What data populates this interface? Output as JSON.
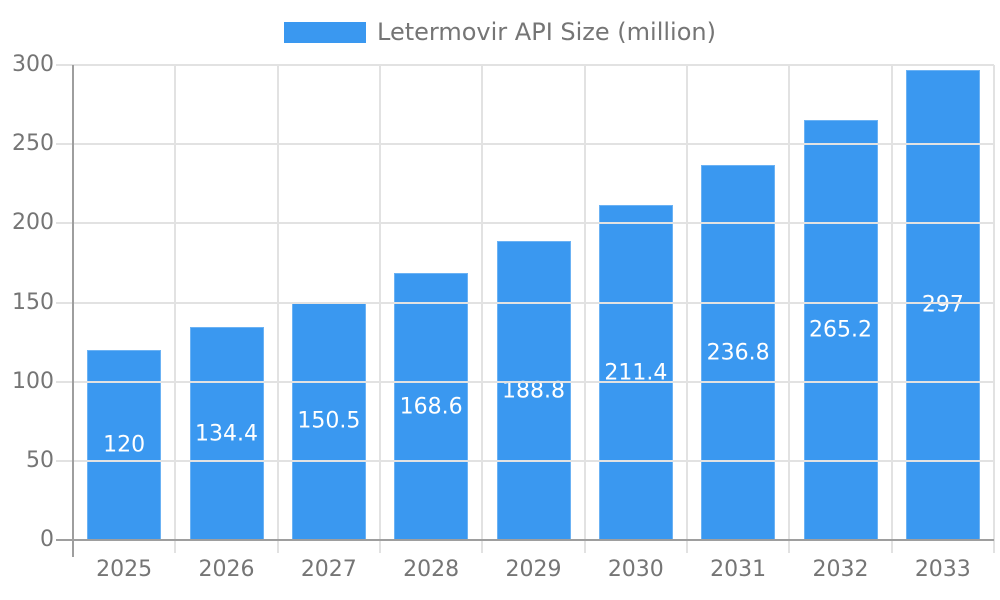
{
  "chart_data": {
    "type": "bar",
    "title": "",
    "legend": {
      "label": "Letermovir API Size (million)",
      "position": "top-center"
    },
    "categories": [
      "2025",
      "2026",
      "2027",
      "2028",
      "2029",
      "2030",
      "2031",
      "2032",
      "2033"
    ],
    "series": [
      {
        "name": "Letermovir API Size (million)",
        "values": [
          120,
          134.4,
          150.5,
          168.6,
          188.8,
          211.4,
          236.8,
          265.2,
          297
        ],
        "labels": [
          "120",
          "134.4",
          "150.5",
          "168.6",
          "188.8",
          "211.4",
          "236.8",
          "265.2",
          "297"
        ]
      }
    ],
    "xlabel": "",
    "ylabel": "",
    "ylim": [
      0,
      300
    ],
    "yticks": [
      0,
      50,
      100,
      150,
      200,
      250,
      300
    ],
    "grid": true,
    "colors": {
      "bar": "#3A98F0",
      "value_label_text": "#FFFFFF",
      "axis_text": "#757575",
      "legend_text": "#757575",
      "grid_line": "#E2E2E2",
      "axis_line": "#9E9E9E",
      "background": "#FFFFFF"
    }
  }
}
